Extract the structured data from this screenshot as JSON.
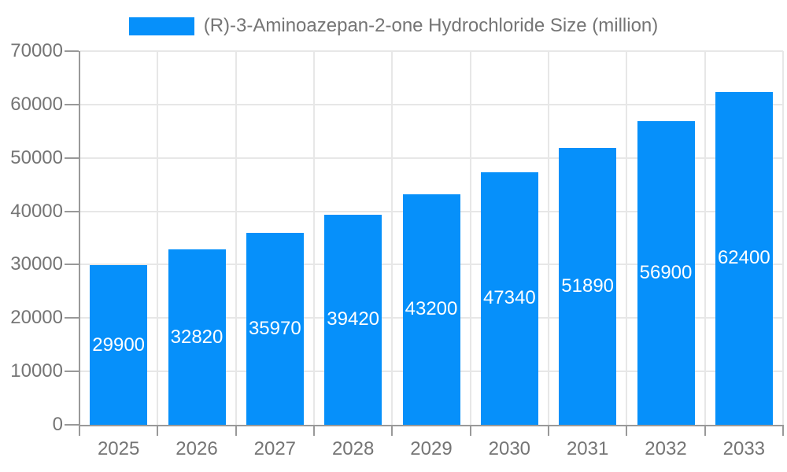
{
  "legend": {
    "position": "top",
    "items": [
      {
        "label": "(R)-3-Aminoazepan-2-one Hydrochloride Size (million)",
        "color": "#0690FA"
      }
    ]
  },
  "chart_data": {
    "type": "bar",
    "title": "(R)-3-Aminoazepan-2-one Hydrochloride Size (million)",
    "categories": [
      "2025",
      "2026",
      "2027",
      "2028",
      "2029",
      "2030",
      "2031",
      "2032",
      "2033"
    ],
    "series": [
      {
        "name": "(R)-3-Aminoazepan-2-one Hydrochloride Size (million)",
        "values": [
          29900,
          32820,
          35970,
          39420,
          43200,
          47340,
          51890,
          56900,
          62400
        ],
        "color": "#0690FA"
      }
    ],
    "data_labels": [
      "29900",
      "32820",
      "35970",
      "39420",
      "43200",
      "47340",
      "51890",
      "56900",
      "62400"
    ],
    "xlabel": "",
    "ylabel": "",
    "ylim": [
      0,
      70000
    ],
    "ytick_step": 10000,
    "ytick_labels": [
      "0",
      "10000",
      "20000",
      "30000",
      "40000",
      "50000",
      "60000",
      "70000"
    ],
    "grid": true,
    "legend_position": "top",
    "colors": {
      "bar": "#0690FA",
      "bar_label": "#FFFFFF",
      "axis_text": "#757575",
      "axis_line": "#999999",
      "grid_line": "#E7E7E7",
      "background": "#FFFFFF"
    }
  }
}
